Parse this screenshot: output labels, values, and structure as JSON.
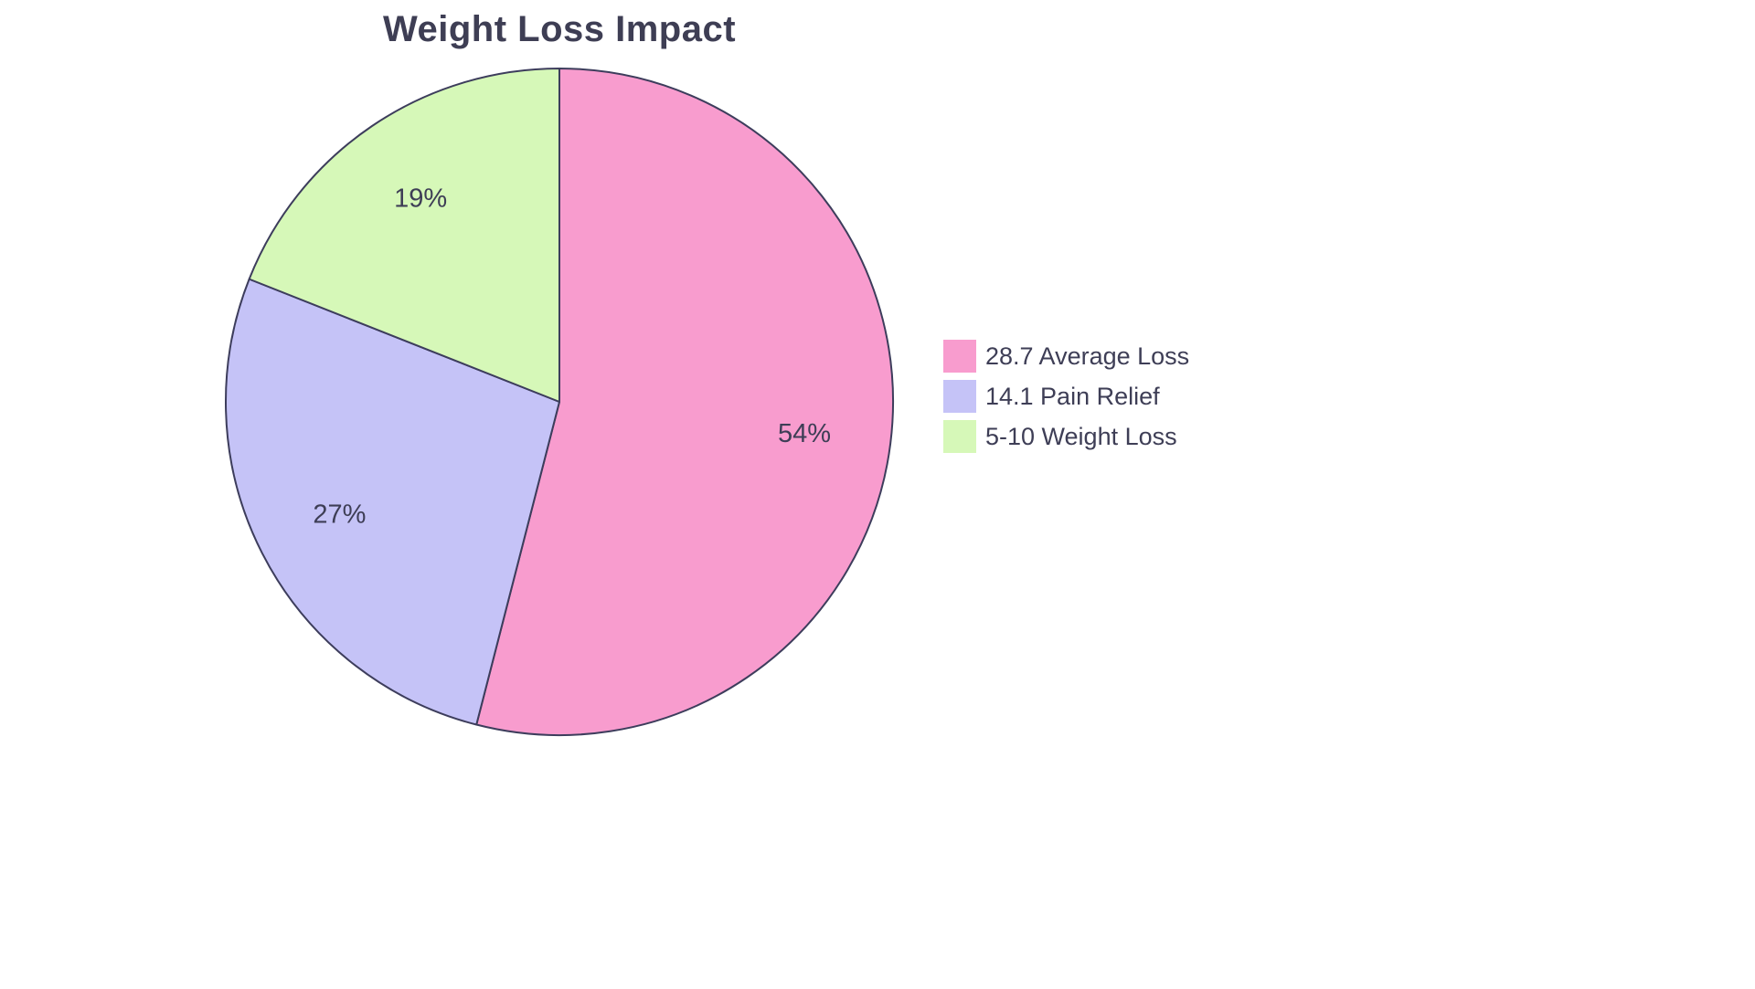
{
  "chart_data": {
    "type": "pie",
    "title": "Weight Loss Impact",
    "labels": [
      "28.7 Average Loss",
      "14.1 Pain Relief",
      "5-10 Weight Loss"
    ],
    "values": [
      54,
      27,
      19
    ],
    "slices": [
      {
        "label": "28.7 Average Loss",
        "percent": 54,
        "pct_label": "54%",
        "color": "#F89CCE"
      },
      {
        "label": "14.1 Pain Relief",
        "percent": 27,
        "pct_label": "27%",
        "color": "#C5C3F7"
      },
      {
        "label": "5-10 Weight Loss",
        "percent": 19,
        "pct_label": "19%",
        "color": "#D6F8B8"
      }
    ],
    "legend_position": "right",
    "start_angle_deg": -90,
    "direction": "clockwise",
    "stroke_color": "#3D3D5C",
    "text_color": "#3E3E56",
    "background": "#FFFFFF"
  }
}
